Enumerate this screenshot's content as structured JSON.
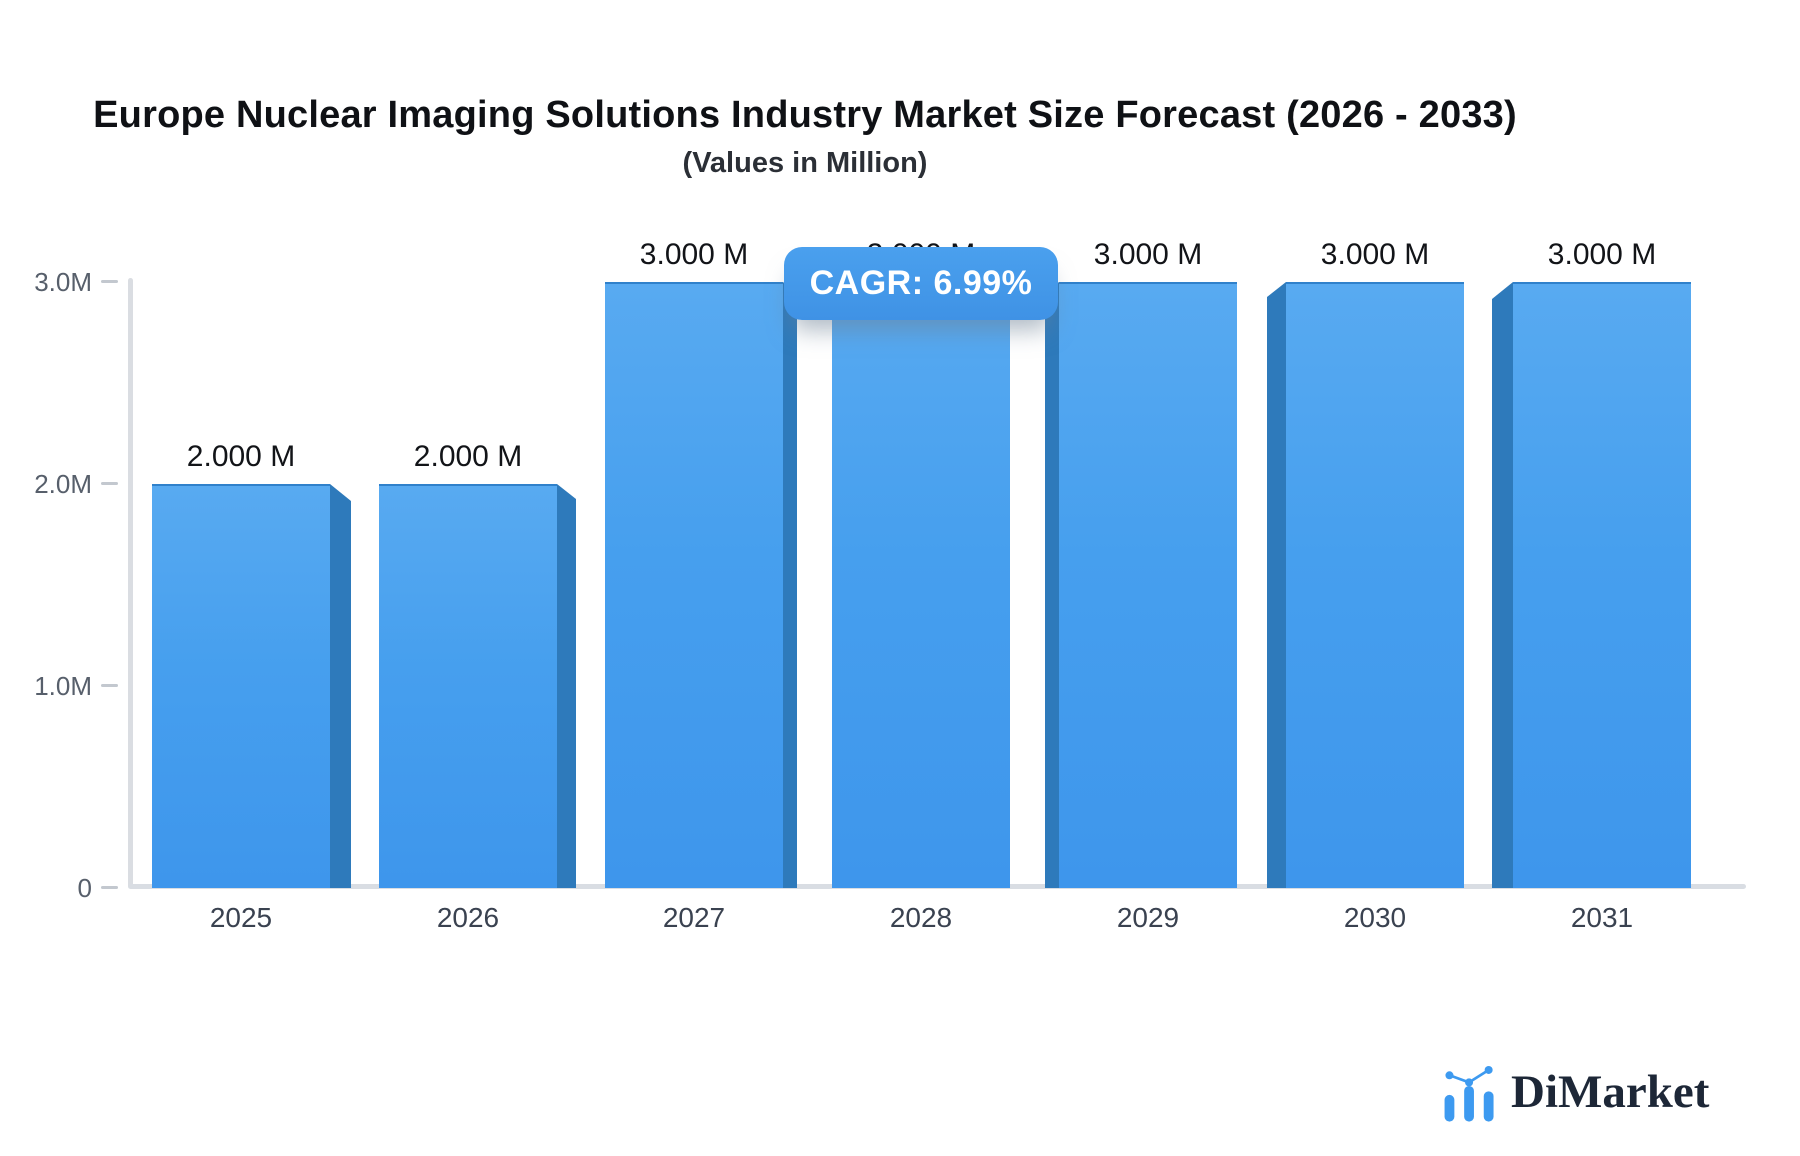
{
  "header": {
    "title": "Europe Nuclear Imaging Solutions Industry Market Size Forecast (2026 - 2033)",
    "subtitle": "(Values in Million)"
  },
  "badge": {
    "label": "CAGR: 6.99%"
  },
  "logo": {
    "text": "DiMarket",
    "icon": "bar-chart-trend-icon"
  },
  "colors": {
    "bar_face_top": "#58aaf1",
    "bar_face_bottom": "#3e96ec",
    "bar_side": "#2e7abb",
    "badge_blue": "#4398e8",
    "axis_gray": "#d9dde3",
    "logo_blue": "#3d9af0",
    "logo_navy": "#1d2737",
    "title_color": "#0f1115"
  },
  "chart_data": {
    "type": "bar",
    "title": "Europe Nuclear Imaging Solutions Industry Market Size Forecast (2026 - 2033)",
    "subtitle": "(Values in Million)",
    "unit": "Million",
    "categories": [
      "2025",
      "2026",
      "2027",
      "2028",
      "2029",
      "2030",
      "2031"
    ],
    "values": [
      2.0,
      2.0,
      3.0,
      3.0,
      3.0,
      3.0,
      3.0
    ],
    "data_labels": [
      "2.000 M",
      "2.000 M",
      "3.000 M",
      "3.000 M",
      "3.000 M",
      "3.000 M",
      "3.000 M"
    ],
    "annotation": "CAGR: 6.99%",
    "annotation_anchor_category": "2028",
    "xlabel": "",
    "ylabel": "",
    "ylim": [
      0,
      3.2
    ],
    "grid": false,
    "legend": false,
    "yticks": [
      {
        "label": "3.0M",
        "value": 3
      },
      {
        "label": "2.0M",
        "value": 2
      },
      {
        "label": "1.0M",
        "value": 1
      },
      {
        "label": "0",
        "value": 0
      }
    ]
  }
}
